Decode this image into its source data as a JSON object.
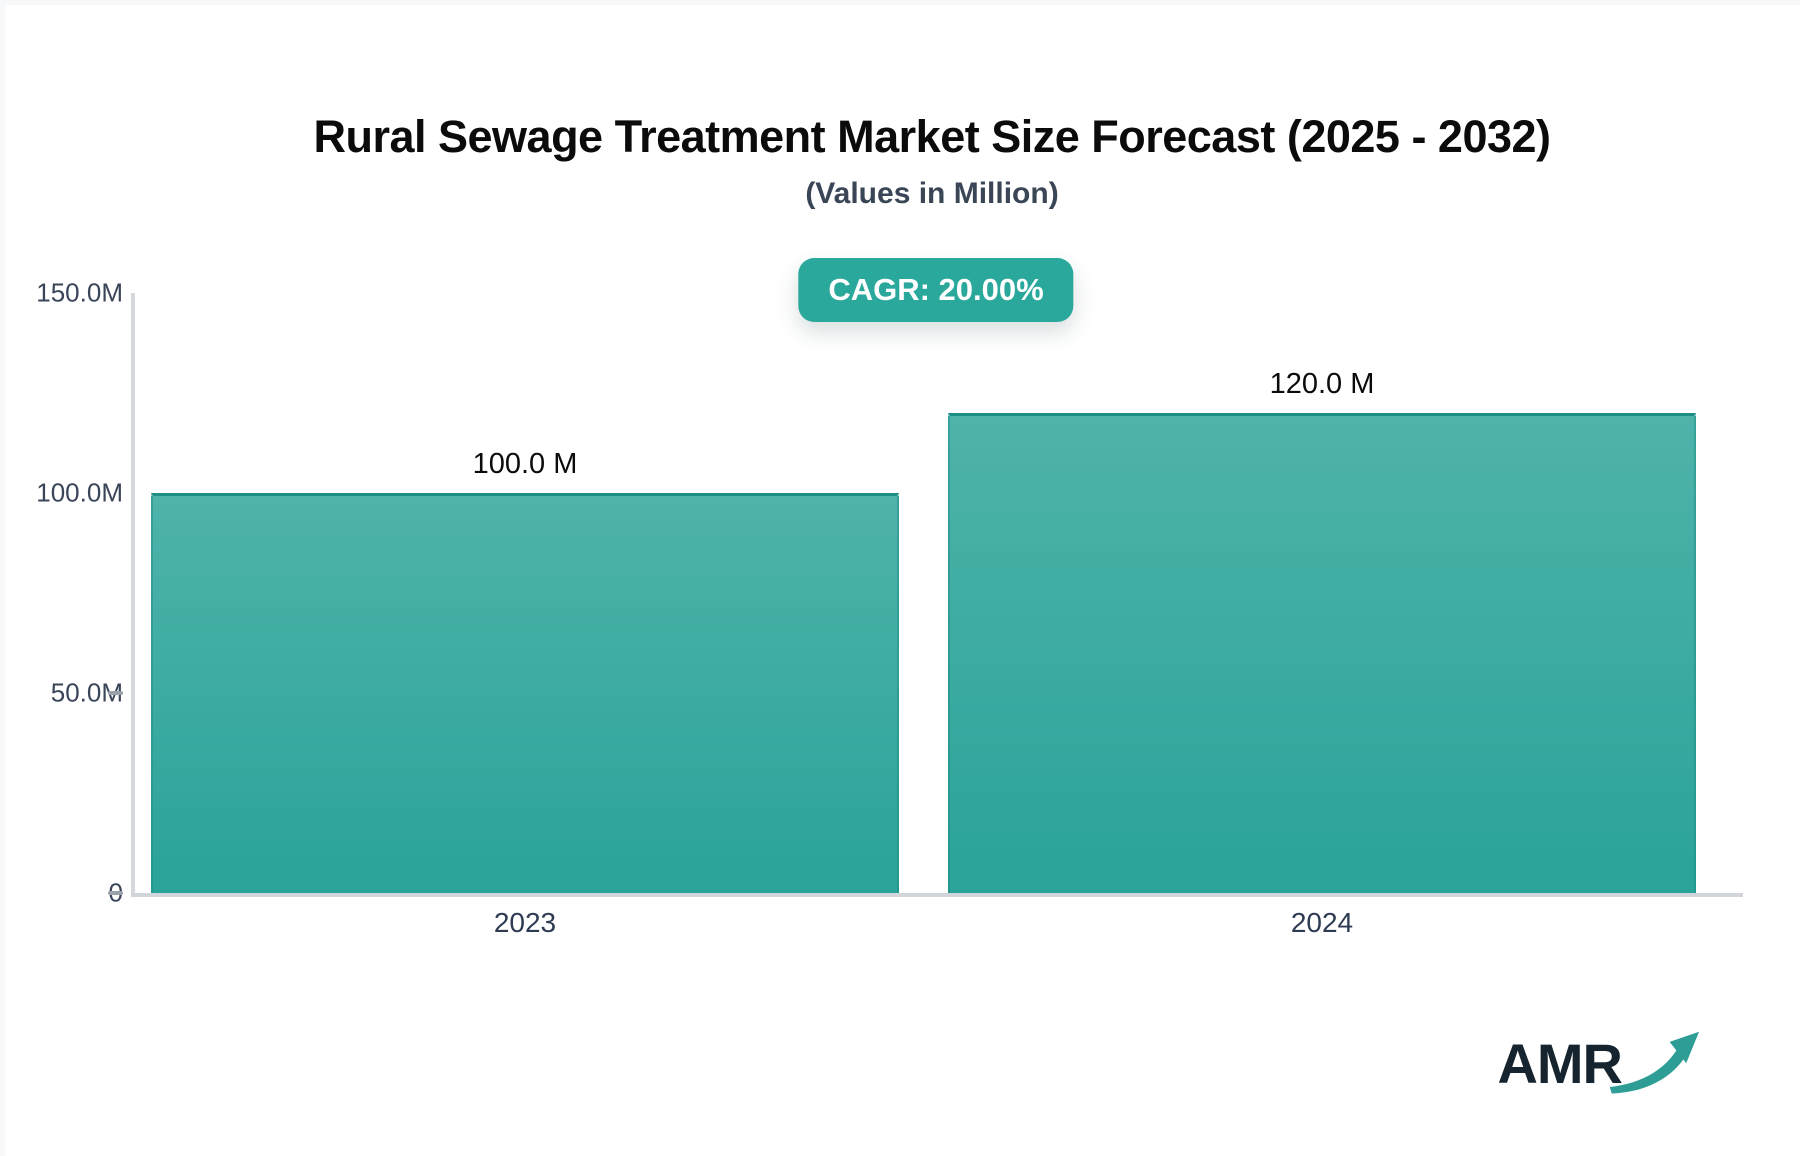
{
  "header": {
    "title": "Rural Sewage Treatment Market Size Forecast (2025 - 2032)",
    "subtitle": "(Values in Million)",
    "cagr_badge": "CAGR: 20.00%"
  },
  "chart_data": {
    "type": "bar",
    "title": "Rural Sewage Treatment Market Size Forecast (2025 - 2032)",
    "subtitle": "(Values in Million)",
    "unit": "Million",
    "cagr_percent": 20.0,
    "categories": [
      "2023",
      "2024"
    ],
    "values": [
      100.0,
      120.0
    ],
    "bar_labels": [
      "100.0 M",
      "120.0 M"
    ],
    "xlabel": "",
    "ylabel": "",
    "ylim": [
      0,
      150
    ],
    "grid": false,
    "legend": false,
    "yticks": [
      {
        "label": "150.0M",
        "value": 150,
        "dash": false
      },
      {
        "label": "100.0M",
        "value": 100,
        "dash": false
      },
      {
        "label": "50.0M",
        "value": 50,
        "dash": true
      },
      {
        "label": "0",
        "value": 0,
        "dash": true
      }
    ],
    "colors": {
      "bar_gradient_top": "#4fb3aa",
      "bar_gradient_bottom": "#2aa399",
      "bar_stroke": "#1d8f86",
      "axis_line": "#d4d7db",
      "tick_dash": "#9aa1a8",
      "badge_bg": "#2aa89c",
      "badge_text": "#ffffff",
      "title_text": "#0b0b0c",
      "subtitle_text": "#3a4556",
      "axis_label_text": "#3a4559"
    }
  },
  "logo": {
    "text": "AMR",
    "arrow_icon": "growth-arrow",
    "text_color": "#15242e",
    "arrow_color": "#2d9d95"
  }
}
